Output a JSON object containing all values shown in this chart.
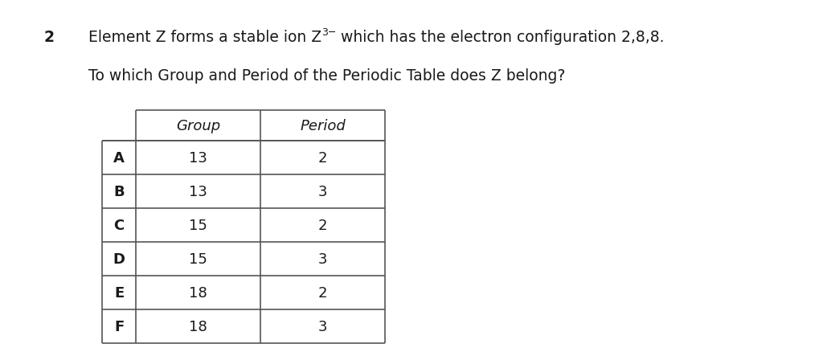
{
  "question_number": "2",
  "question_text_before": "Element Z forms a stable ion Z",
  "ion_superscript": "3−",
  "question_text_after": " which has the electron configuration 2,8,8.",
  "sub_question": "To which Group and Period of the Periodic Table does Z belong?",
  "header_col2": "Group",
  "header_col3": "Period",
  "rows": [
    {
      "label": "A",
      "group": "13",
      "period": "2"
    },
    {
      "label": "B",
      "group": "13",
      "period": "3"
    },
    {
      "label": "C",
      "group": "15",
      "period": "2"
    },
    {
      "label": "D",
      "group": "15",
      "period": "3"
    },
    {
      "label": "E",
      "group": "18",
      "period": "2"
    },
    {
      "label": "F",
      "group": "18",
      "period": "3"
    }
  ],
  "bg_color": "#ffffff",
  "text_color": "#1a1a1a",
  "table_line_color": "#555555",
  "fig_width": 10.24,
  "fig_height": 4.39,
  "dpi": 100
}
